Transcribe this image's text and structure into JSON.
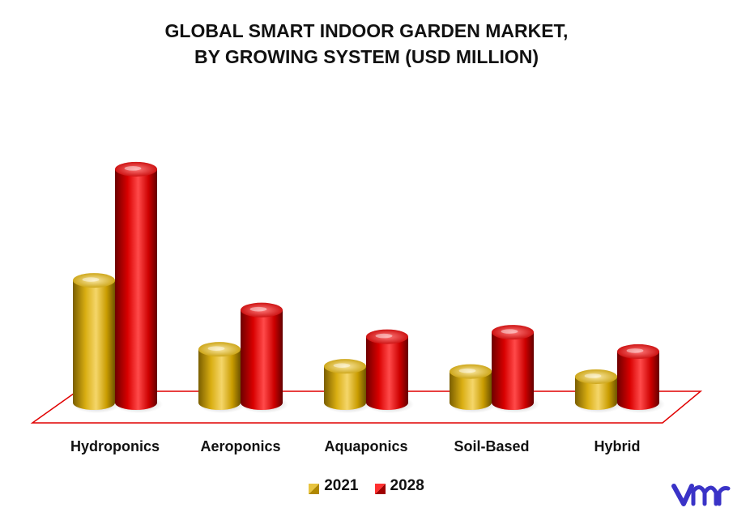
{
  "chart_data": {
    "type": "bar",
    "title": "GLOBAL SMART INDOOR GARDEN MARKET,",
    "subtitle": "BY GROWING SYSTEM (USD MILLION)",
    "xlabel": "",
    "ylabel": "",
    "categories": [
      "Hydroponics",
      "Aeroponics",
      "Aquaponics",
      "Soil-Based",
      "Hybrid"
    ],
    "series": [
      {
        "name": "2021",
        "values": [
          165,
          72,
          49,
          42,
          35
        ],
        "color": "#d4a500"
      },
      {
        "name": "2028",
        "values": [
          315,
          125,
          89,
          95,
          69
        ],
        "color": "#e00000"
      }
    ],
    "ylim": [
      0,
      340
    ],
    "grid": false,
    "legend": "bottom-center",
    "style": "3d-cylinder"
  },
  "colors": {
    "floor_outline": "#e00000",
    "logo": "#3a33c7"
  },
  "logo": {
    "icon": "vmr-logo"
  }
}
